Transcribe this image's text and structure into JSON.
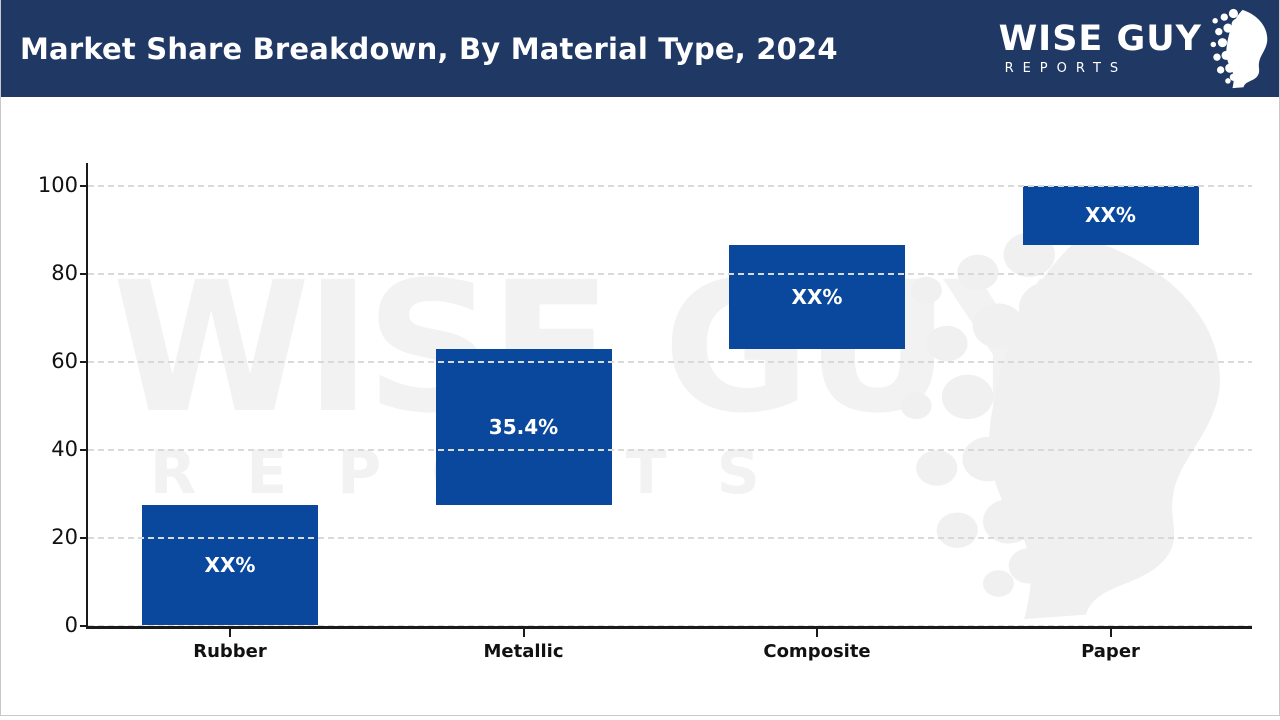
{
  "header": {
    "title": "Market Share Breakdown, By Material Type, 2024",
    "logo_line1": "WISE GUY",
    "logo_line2": "REPORTS"
  },
  "watermark": {
    "line1": "WISE GUY.",
    "line2": "REPORTS"
  },
  "chart_data": {
    "type": "bar",
    "variant": "floating-waterfall",
    "title": "Market Share Breakdown, By Material Type, 2024",
    "categories": [
      "Rubber",
      "Metallic",
      "Composite",
      "Paper"
    ],
    "segments": [
      {
        "category": "Rubber",
        "start": 0,
        "end": 27.4,
        "label": "XX%"
      },
      {
        "category": "Metallic",
        "start": 27.4,
        "end": 62.8,
        "label": "35.4%"
      },
      {
        "category": "Composite",
        "start": 62.8,
        "end": 86.4,
        "label": "XX%"
      },
      {
        "category": "Paper",
        "start": 86.4,
        "end": 100,
        "label": "XX%"
      }
    ],
    "ylim": [
      0,
      100
    ],
    "yticks": [
      0,
      20,
      40,
      60,
      80,
      100
    ],
    "xlabel": "",
    "ylabel": "",
    "legend": "none",
    "grid": "horizontal-dashed"
  },
  "colors": {
    "header_bg": "#203864",
    "bar": "#0a489e",
    "grid": "#d9d9d9",
    "axis": "#1a1a1a",
    "watermark": "#f2f2f2",
    "title_text": "#ffffff",
    "bar_label_text": "#ffffff"
  }
}
